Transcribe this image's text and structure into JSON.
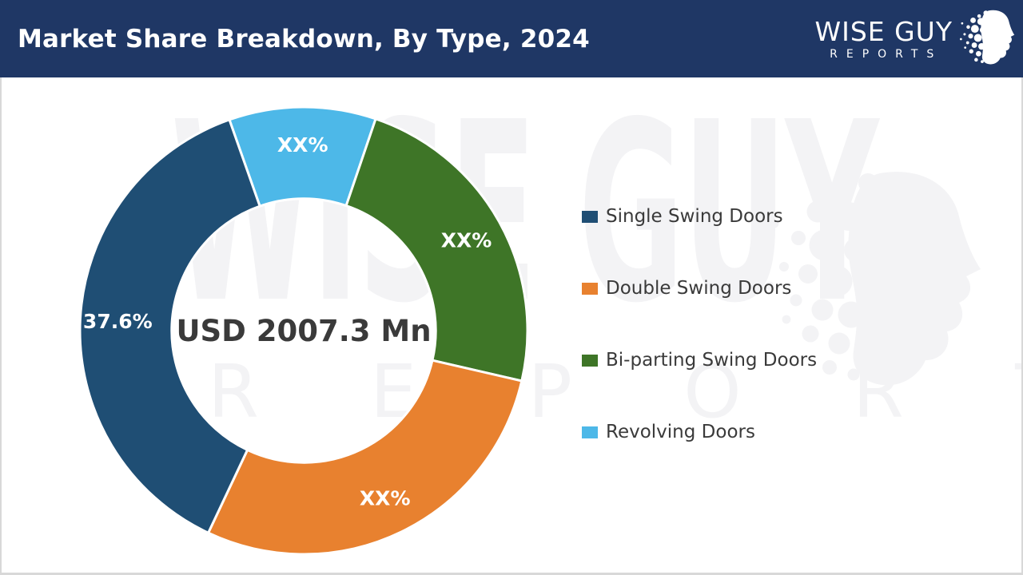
{
  "header": {
    "title": "Market Share Breakdown, By Type, 2024",
    "logo": {
      "name": "WISE GUY",
      "sub": "REPORTS"
    }
  },
  "watermark": {
    "name": "WISE GUY",
    "sub": "R E P O R T S"
  },
  "chart_data": {
    "type": "pie",
    "subtype": "donut",
    "title": "Market Share Breakdown, By Type, 2024",
    "center_label": "USD 2007.3 Mn",
    "start_angle_deg": -19.4,
    "inner_radius_ratio": 0.59,
    "legend_position": "right",
    "segments": [
      {
        "label": "Revolving Doors",
        "pct": 10.6,
        "data_label": "XX%",
        "color": "#4DB8E8"
      },
      {
        "label": "Bi-parting Swing Doors",
        "pct": 23.4,
        "data_label": "XX%",
        "color": "#3E7527"
      },
      {
        "label": "Double Swing Doors",
        "pct": 28.4,
        "data_label": "XX%",
        "color": "#E8812F"
      },
      {
        "label": "Single Swing Doors",
        "pct": 37.6,
        "data_label": "37.6%",
        "color": "#1F4E74"
      }
    ],
    "legend": [
      {
        "label": "Single Swing Doors",
        "color": "#1F4E74"
      },
      {
        "label": "Double Swing Doors",
        "color": "#E8812F"
      },
      {
        "label": "Bi-parting Swing Doors",
        "color": "#3E7527"
      },
      {
        "label": "Revolving Doors",
        "color": "#4DB8E8"
      }
    ]
  },
  "colors": {
    "header_bg": "#1F3765",
    "text_dark": "#3A3A3A",
    "watermark": "#F3F3F5",
    "border": "#D8D8D8"
  }
}
